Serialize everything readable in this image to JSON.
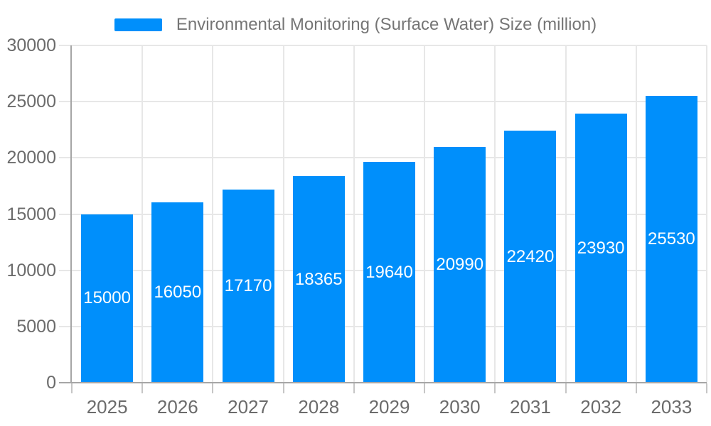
{
  "legend": {
    "label": "Environmental Monitoring (Surface Water) Size (million)"
  },
  "chart_data": {
    "type": "bar",
    "title": "Environmental Monitoring (Surface Water) Size (million)",
    "categories": [
      "2025",
      "2026",
      "2027",
      "2028",
      "2029",
      "2030",
      "2031",
      "2032",
      "2033"
    ],
    "values": [
      15000,
      16050,
      17170,
      18365,
      19640,
      20990,
      22420,
      23930,
      25530
    ],
    "series": [
      {
        "name": "Environmental Monitoring (Surface Water) Size (million)",
        "values": [
          15000,
          16050,
          17170,
          18365,
          19640,
          20990,
          22420,
          23930,
          25530
        ]
      }
    ],
    "xlabel": "",
    "ylabel": "",
    "ylim": [
      0,
      30000
    ],
    "yticks": [
      0,
      5000,
      10000,
      15000,
      20000,
      25000,
      30000
    ],
    "grid": true,
    "legend_position": "top",
    "value_labels_inside_bars": true,
    "colors": {
      "bar": "#008FFB",
      "value_label": "#FFFFFF",
      "axis_label": "#6B6B6B",
      "legend_text": "#757575",
      "gridline": "#E7E7E7",
      "axis_line": "#A6A6A6",
      "tick": "#C6C6C6",
      "background": "#FFFFFF"
    }
  }
}
